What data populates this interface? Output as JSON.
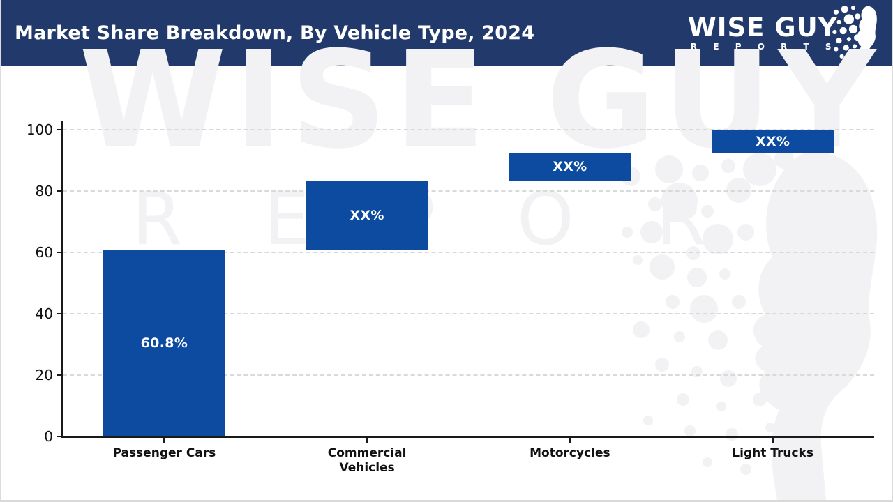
{
  "header": {
    "title": "Market Share Breakdown, By Vehicle Type, 2024",
    "bg_color": "#213A6B",
    "logo": {
      "line1": "WISE GUY",
      "line2": "R E P O R T S"
    }
  },
  "watermark": {
    "line1": "WISE GUY",
    "line2": "R E P O R T S",
    "color": "#f2f2f4"
  },
  "chart_data": {
    "type": "bar",
    "subtype": "floating-segment-waterfall",
    "title": "Market Share Breakdown, By Vehicle Type, 2024",
    "categories": [
      "Passenger Cars",
      "Commercial Vehicles",
      "Motorcycles",
      "Light Trucks"
    ],
    "series": [
      {
        "name": "Market share (%)",
        "segments": [
          {
            "category": "Passenger Cars",
            "start": 0,
            "end": 60.8,
            "label": "60.8%"
          },
          {
            "category": "Commercial Vehicles",
            "start": 60.8,
            "end": 83.4,
            "label": "XX%"
          },
          {
            "category": "Motorcycles",
            "start": 83.5,
            "end": 92.4,
            "label": "XX%"
          },
          {
            "category": "Light Trucks",
            "start": 92.6,
            "end": 99.8,
            "label": "XX%"
          }
        ]
      }
    ],
    "xlabel": "",
    "ylabel": "",
    "yticks": [
      0,
      20,
      40,
      60,
      80,
      100
    ],
    "ylim": [
      0,
      103
    ],
    "grid": {
      "horizontal": true,
      "style": "dashed",
      "color": "#d9d9d9"
    },
    "legend": "none",
    "bar_color": "#0C4B9F",
    "bar_label_color": "#ffffff",
    "axis_color": "#1a1a1a"
  }
}
